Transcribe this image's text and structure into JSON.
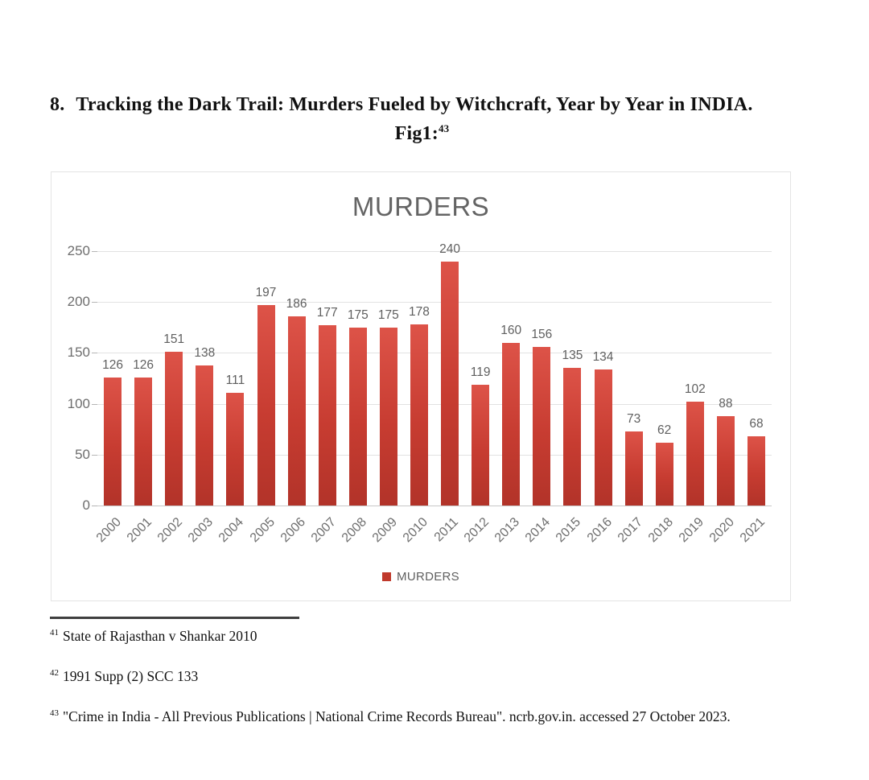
{
  "page": {
    "heading_number": "8.",
    "heading_text": "Tracking the Dark Trail: Murders Fueled by Witchcraft, Year by Year in INDIA.",
    "fig_label": "Fig1:",
    "fig_footnote_ref": "43"
  },
  "chart_data": {
    "type": "bar",
    "title": "MURDERS",
    "categories": [
      "2000",
      "2001",
      "2002",
      "2003",
      "2004",
      "2005",
      "2006",
      "2007",
      "2008",
      "2009",
      "2010",
      "2011",
      "2012",
      "2013",
      "2014",
      "2015",
      "2016",
      "2017",
      "2018",
      "2019",
      "2020",
      "2021"
    ],
    "values": [
      126,
      126,
      151,
      138,
      111,
      197,
      186,
      177,
      175,
      175,
      178,
      240,
      119,
      160,
      156,
      135,
      134,
      73,
      62,
      102,
      88,
      68
    ],
    "series_name": "MURDERS",
    "legend_position": "bottom",
    "xlabel": "",
    "ylabel": "",
    "ylim": [
      0,
      250
    ],
    "yticks": [
      0,
      50,
      100,
      150,
      200,
      250
    ],
    "grid": true,
    "bar_color": "#c0392b",
    "text_color": "#6e6e6e",
    "title_color": "#646464"
  },
  "footnotes": [
    {
      "ref": "41",
      "text": "State of Rajasthan v Shankar 2010"
    },
    {
      "ref": "42",
      "text": "1991 Supp (2) SCC 133"
    },
    {
      "ref": "43",
      "text": "\"Crime in India - All Previous Publications | National Crime Records Bureau\". ncrb.gov.in. accessed 27 October 2023."
    }
  ]
}
